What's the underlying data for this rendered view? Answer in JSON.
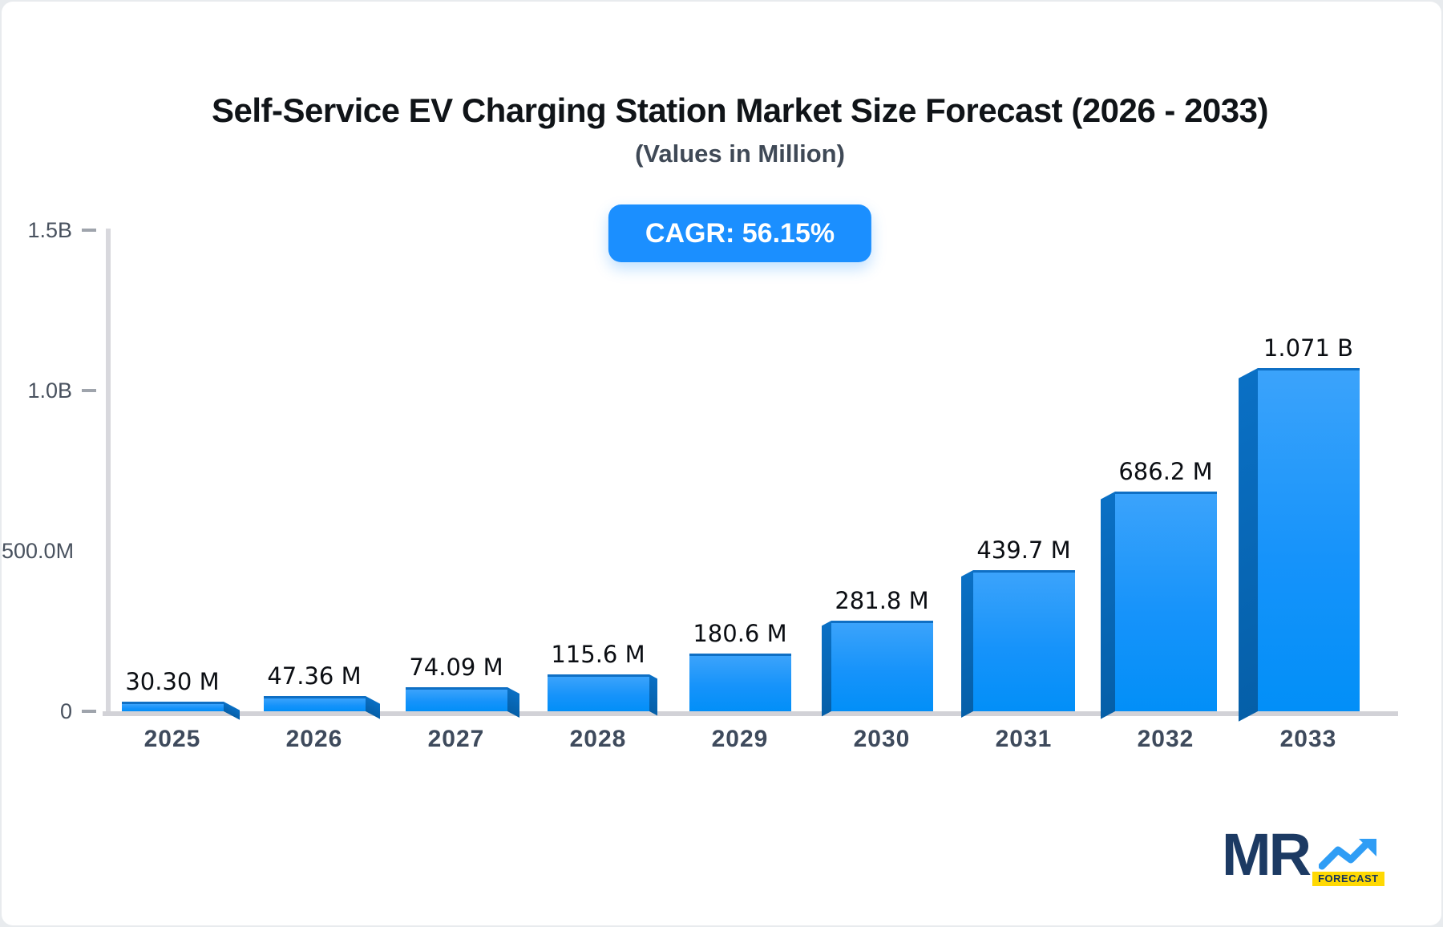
{
  "header": {
    "title": "Self-Service EV Charging Station Market Size Forecast (2026 - 2033)",
    "subtitle": "(Values in Million)",
    "cagr_badge": "CAGR: 56.15%"
  },
  "chart_data": {
    "type": "bar",
    "title": "Self-Service EV Charging Station Market Size Forecast (2026 - 2033)",
    "subtitle": "(Values in Million)",
    "cagr_percent": 56.15,
    "categories": [
      "2025",
      "2026",
      "2027",
      "2028",
      "2029",
      "2030",
      "2031",
      "2032",
      "2033"
    ],
    "values_millions": [
      30.3,
      47.36,
      74.09,
      115.6,
      180.6,
      281.8,
      439.7,
      686.2,
      1071
    ],
    "value_labels": [
      "30.30 M",
      "47.36 M",
      "74.09 M",
      "115.6 M",
      "180.6 M",
      "281.8 M",
      "439.7 M",
      "686.2 M",
      "1.071 B"
    ],
    "ylabel": "",
    "xlabel": "",
    "ylim_millions": [
      0,
      1500
    ],
    "y_ticks": [
      {
        "label": "1.5B",
        "value_millions": 1500,
        "show_dash": true
      },
      {
        "label": "1.0B",
        "value_millions": 1000,
        "show_dash": true
      },
      {
        "label": "500.0M",
        "value_millions": 500,
        "show_dash": false
      },
      {
        "label": "0",
        "value_millions": 0,
        "show_dash": true
      }
    ],
    "grid": "off",
    "legend": "none",
    "style": "3d-bars-central-perspective"
  },
  "colors": {
    "badge_blue": "#1b8fff",
    "bar_face_top": "#3ba3fb",
    "bar_face_bottom": "#028ff8",
    "bar_top_edge": "#0f6fc4",
    "bar_side_dark": "#0766b5",
    "axis_line": "#d6d6db",
    "tick_text": "#49525f",
    "category_text": "#3e4a5c",
    "logo_navy": "#1c3a63",
    "logo_yellow": "#ffd903",
    "logo_arrow_blue": "#2f9df5"
  },
  "branding": {
    "logo_text": "MR",
    "logo_sub_label": "FORECAST"
  }
}
